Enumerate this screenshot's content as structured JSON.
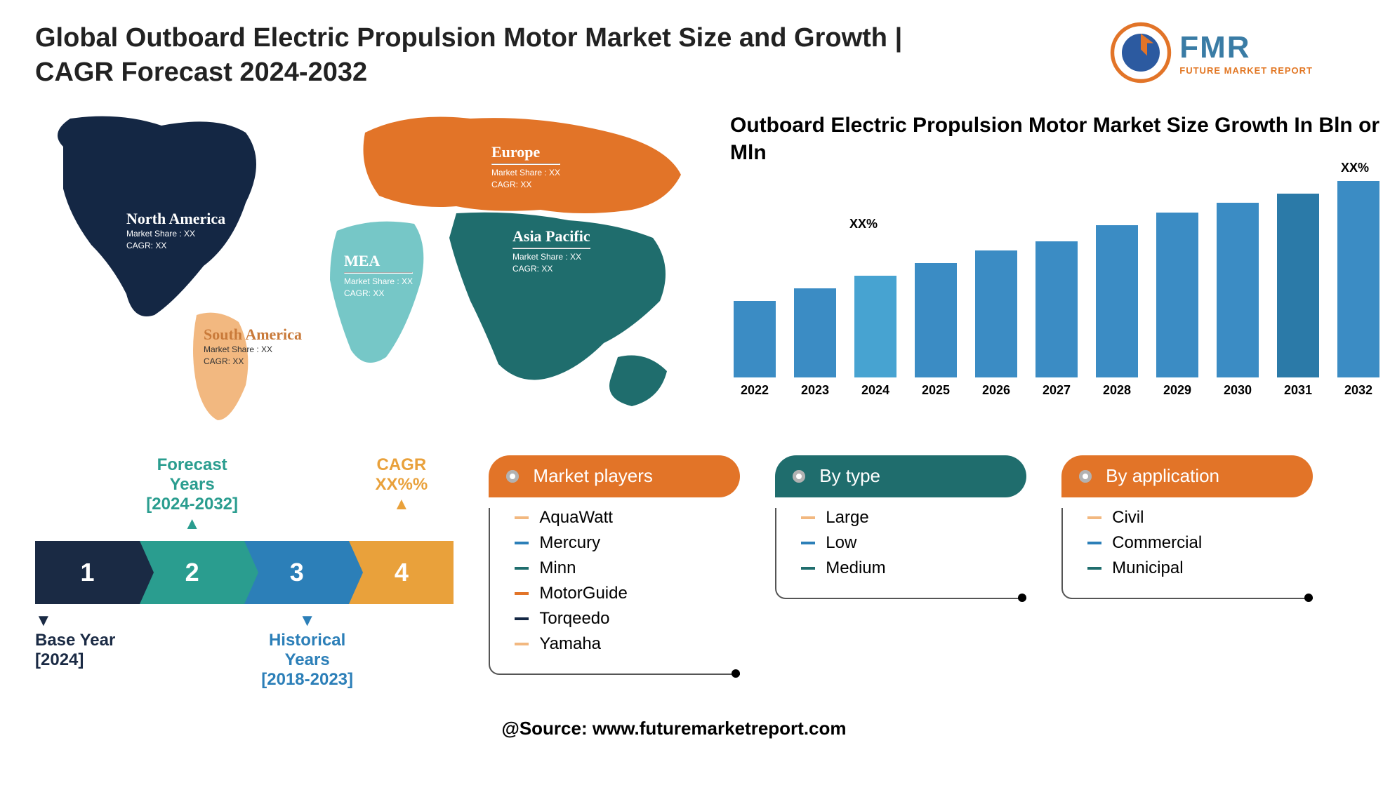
{
  "title": "Global Outboard Electric Propulsion Motor Market Size and Growth | CAGR Forecast 2024-2032",
  "logo": {
    "brand": "FMR",
    "sub": "FUTURE MARKET REPORT"
  },
  "map": {
    "regions": {
      "north_america": {
        "name": "North America",
        "share": "Market Share : XX",
        "cagr": "CAGR: XX",
        "color": "#142744"
      },
      "south_america": {
        "name": "South America",
        "share": "Market Share : XX",
        "cagr": "CAGR: XX",
        "color": "#f2b880"
      },
      "europe": {
        "name": "Europe",
        "share": "Market Share : XX",
        "cagr": "CAGR: XX",
        "color": "#e27428"
      },
      "mea": {
        "name": "MEA",
        "share": "Market Share : XX",
        "cagr": "CAGR: XX",
        "color": "#76c7c7"
      },
      "asia_pacific": {
        "name": "Asia Pacific",
        "share": "Market Share : XX",
        "cagr": "CAGR: XX",
        "color": "#1f6d6d"
      }
    }
  },
  "chart": {
    "title": "Outboard Electric Propulsion Motor Market Size Growth In Bln or Mln",
    "years": [
      "2022",
      "2023",
      "2024",
      "2025",
      "2026",
      "2027",
      "2028",
      "2029",
      "2030",
      "2031",
      "2032"
    ],
    "values": [
      120,
      140,
      160,
      180,
      200,
      215,
      240,
      260,
      275,
      290,
      310
    ],
    "max_height": 310,
    "colors": [
      "#3b8cc4",
      "#3b8cc4",
      "#47a3d1",
      "#3b8cc4",
      "#3b8cc4",
      "#3b8cc4",
      "#3b8cc4",
      "#3b8cc4",
      "#3b8cc4",
      "#2b7aa8",
      "#3b8cc4"
    ],
    "annot1": "XX%",
    "annot2": "XX%"
  },
  "timeline": {
    "forecast_label": "Forecast Years",
    "forecast_range": "[2024-2032]",
    "forecast_color": "#2a9d8f",
    "cagr_label": "CAGR",
    "cagr_value": "XX%%",
    "cagr_color": "#e9a13b",
    "base_label": "Base Year",
    "base_range": "[2024]",
    "base_color": "#1a2a44",
    "hist_label": "Historical Years",
    "hist_range": "[2018-2023]",
    "hist_color": "#2c7fb8",
    "segments": [
      {
        "n": "1",
        "color": "#1a2a44"
      },
      {
        "n": "2",
        "color": "#2a9d8f"
      },
      {
        "n": "3",
        "color": "#2c7fb8"
      },
      {
        "n": "4",
        "color": "#e9a13b"
      }
    ]
  },
  "categories": {
    "players": {
      "title": "Market players",
      "header_color": "#e27428",
      "items": [
        {
          "label": "AquaWatt",
          "color": "#f2b880"
        },
        {
          "label": "Mercury",
          "color": "#2c7fb8"
        },
        {
          "label": "Minn",
          "color": "#1f6d6d"
        },
        {
          "label": "MotorGuide",
          "color": "#e27428"
        },
        {
          "label": "Torqeedo",
          "color": "#142744"
        },
        {
          "label": "Yamaha",
          "color": "#f2b880"
        }
      ]
    },
    "type": {
      "title": "By type",
      "header_color": "#1f6d6d",
      "items": [
        {
          "label": "Large",
          "color": "#f2b880"
        },
        {
          "label": "Low",
          "color": "#2c7fb8"
        },
        {
          "label": "Medium",
          "color": "#1f6d6d"
        }
      ]
    },
    "application": {
      "title": "By application",
      "header_color": "#e27428",
      "items": [
        {
          "label": "Civil",
          "color": "#f2b880"
        },
        {
          "label": "Commercial",
          "color": "#2c7fb8"
        },
        {
          "label": "Municipal",
          "color": "#1f6d6d"
        }
      ]
    }
  },
  "source": "@Source: www.futuremarketreport.com"
}
